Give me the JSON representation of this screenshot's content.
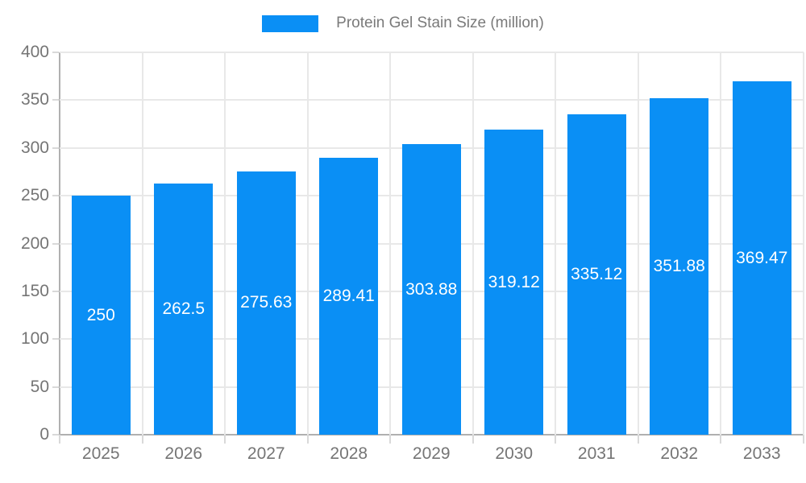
{
  "chart_data": {
    "type": "bar",
    "title": "Protein Gel Stain Size (million)",
    "xlabel": "",
    "ylabel": "",
    "categories": [
      "2025",
      "2026",
      "2027",
      "2028",
      "2029",
      "2030",
      "2031",
      "2032",
      "2033"
    ],
    "values": [
      250,
      262.5,
      275.63,
      289.41,
      303.88,
      319.12,
      335.12,
      351.88,
      369.47
    ],
    "value_labels": [
      "250",
      "262.5",
      "275.63",
      "289.41",
      "303.88",
      "319.12",
      "335.12",
      "351.88",
      "369.47"
    ],
    "ylim": [
      0,
      400
    ],
    "yticks": [
      0,
      50,
      100,
      150,
      200,
      250,
      300,
      350,
      400
    ],
    "grid": "horizontal and vertical gridlines on",
    "legend_position": "top-center",
    "value_label_position": "centered inside bar",
    "colors": {
      "bar": "#0a8ff5",
      "value_label_text": "#ffffff",
      "axis_line": "#b0b0b0",
      "gridline": "#e8e8e8",
      "tick_mark": "#d9d9d9",
      "tick_text": "#757575",
      "legend_text": "#7a7a7a",
      "background": "#ffffff"
    }
  }
}
